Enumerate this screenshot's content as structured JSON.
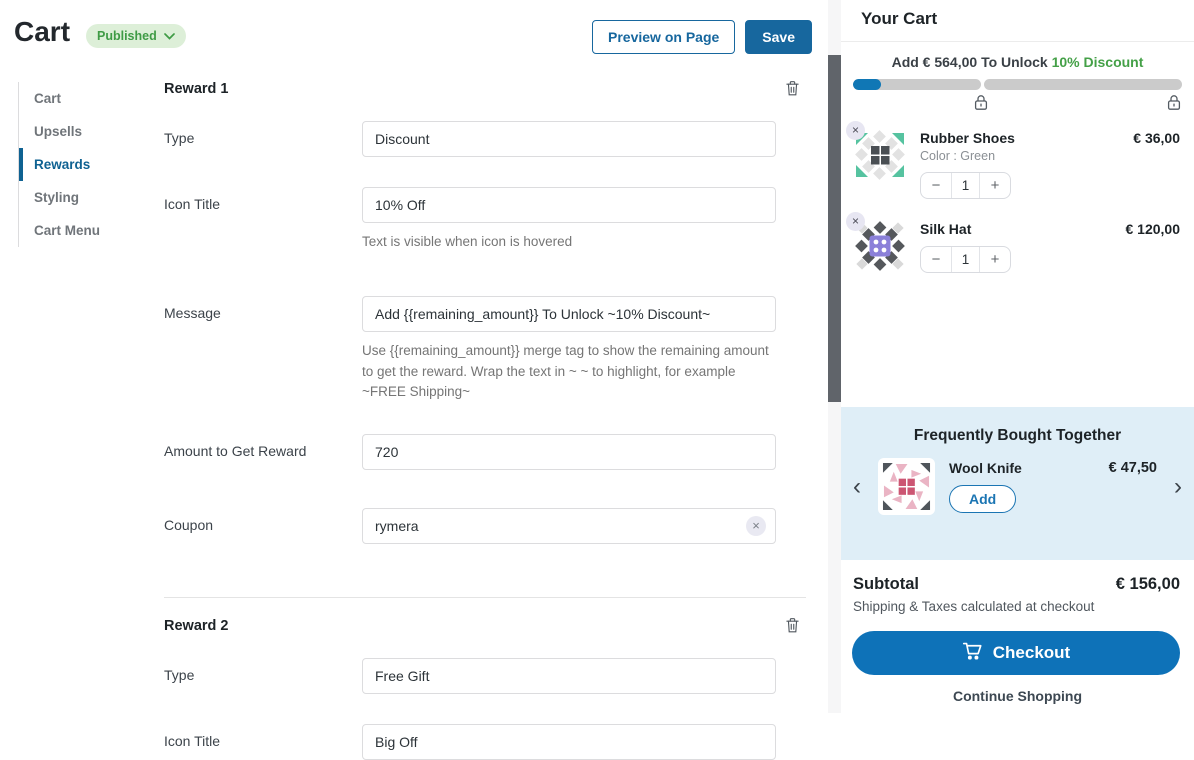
{
  "header": {
    "title": "Cart",
    "status": "Published",
    "preview_button": "Preview on Page",
    "save_button": "Save"
  },
  "sidebar": {
    "items": [
      {
        "label": "Cart"
      },
      {
        "label": "Upsells"
      },
      {
        "label": "Rewards"
      },
      {
        "label": "Styling"
      },
      {
        "label": "Cart Menu"
      }
    ]
  },
  "reward1": {
    "heading": "Reward 1",
    "type_label": "Type",
    "type_value": "Discount",
    "icon_title_label": "Icon Title",
    "icon_title_value": "10% Off",
    "icon_title_help": "Text is visible when icon is hovered",
    "message_label": "Message",
    "message_value": "Add {{remaining_amount}} To Unlock ~10% Discount~",
    "message_help": "Use {{remaining_amount}} merge tag to show the remaining amount to get the reward. Wrap the text in ~ ~ to highlight, for example ~FREE Shipping~",
    "amount_label": "Amount to Get Reward",
    "amount_value": "720",
    "coupon_label": "Coupon",
    "coupon_value": "rymera"
  },
  "reward2": {
    "heading": "Reward 2",
    "type_label": "Type",
    "type_value": "Free Gift",
    "icon_title_label": "Icon Title",
    "icon_title_value": "Big Off"
  },
  "cart": {
    "title": "Your Cart",
    "unlock_prefix": "Add € 564,00 To Unlock ",
    "unlock_highlight": "10% Discount",
    "progress_fill_percent": 22,
    "items": [
      {
        "name": "Rubber Shoes",
        "variant": "Color : Green",
        "price": "€ 36,00",
        "qty": "1"
      },
      {
        "name": "Silk Hat",
        "variant": "",
        "price": "€ 120,00",
        "qty": "1"
      }
    ],
    "fbt": {
      "title": "Frequently Bought Together",
      "product_name": "Wool Knife",
      "product_price": "€ 47,50",
      "add_button": "Add"
    },
    "footer": {
      "subtotal_label": "Subtotal",
      "subtotal_value": "€ 156,00",
      "note": "Shipping & Taxes calculated at checkout",
      "checkout_button": "Checkout",
      "continue_link": "Continue Shopping"
    }
  },
  "icons": {
    "minus": "−",
    "plus": "+",
    "close": "×",
    "chevron_left": "‹",
    "chevron_right": "›"
  },
  "colors": {
    "accent_blue": "#17679e",
    "checkout_blue": "#0e72b8",
    "progress_blue": "#1077b5",
    "success_green": "#44a047",
    "badge_green_bg": "#ddefd8",
    "fbt_bg": "#dfeef7"
  }
}
